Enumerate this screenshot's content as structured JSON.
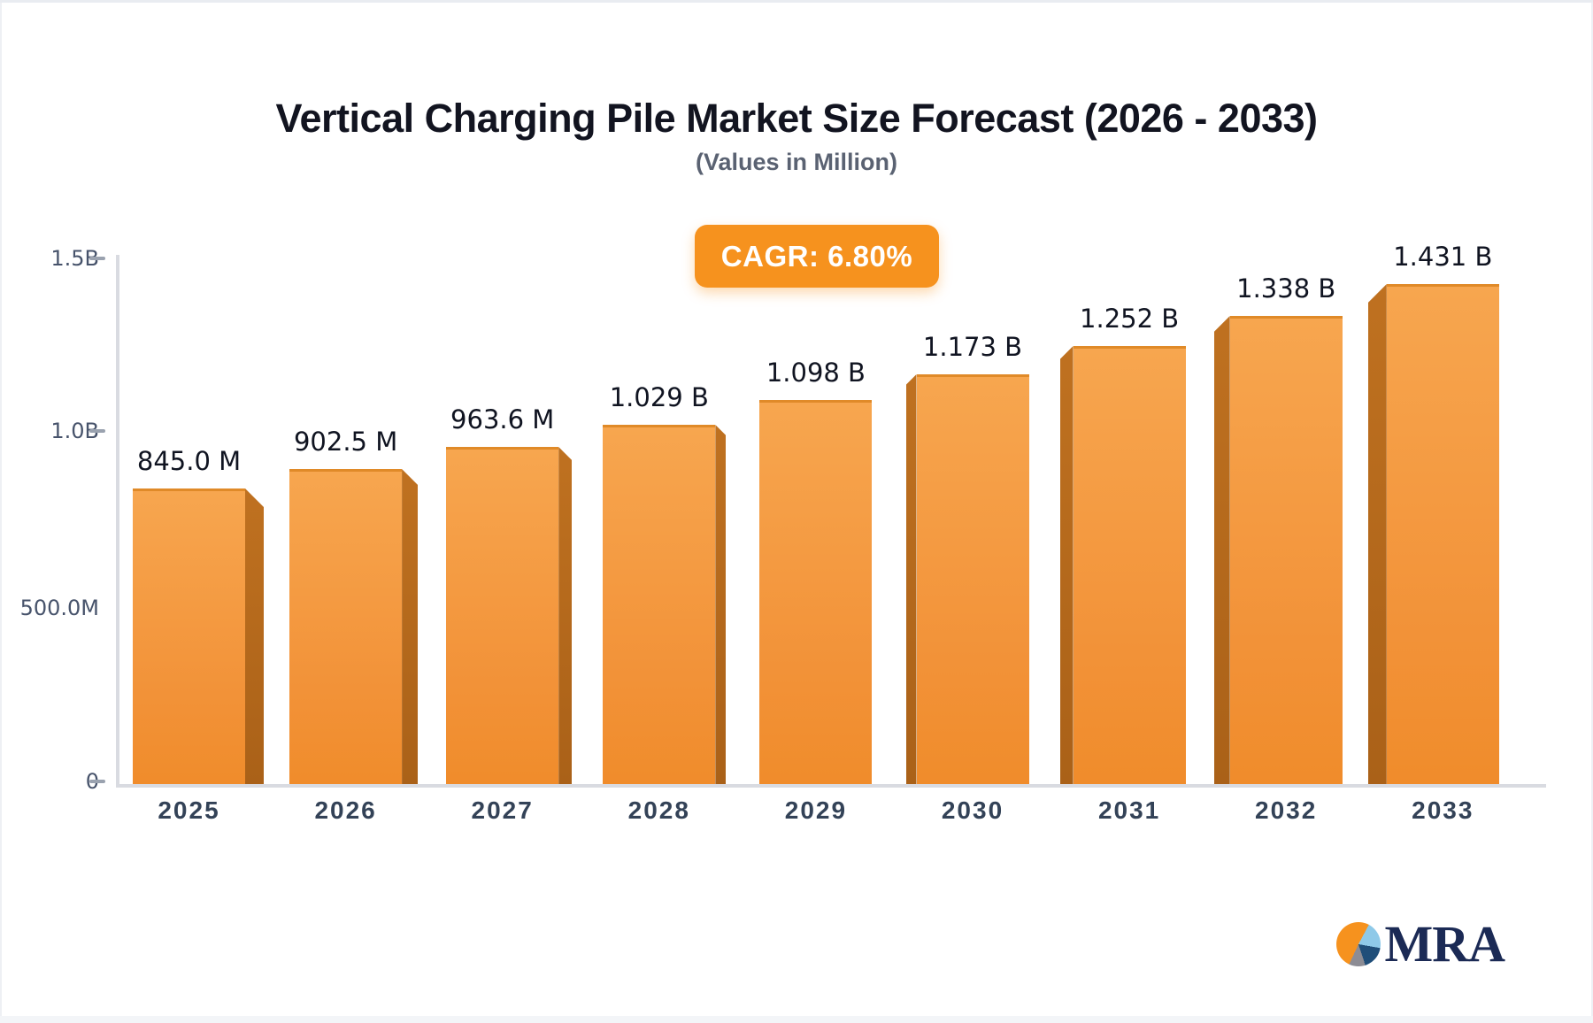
{
  "header": {
    "title": "Vertical Charging Pile Market Size Forecast (2026 - 2033)",
    "subtitle": "(Values in Million)",
    "cagr_badge_label": "CAGR: 6.80%",
    "badge_color": "#f6921e"
  },
  "chart_data": {
    "type": "bar",
    "title": "Vertical Charging Pile Market Size Forecast (2026 - 2033)",
    "subtitle": "(Values in Million)",
    "cagr_percent": "6.80%",
    "categories": [
      "2025",
      "2026",
      "2027",
      "2028",
      "2029",
      "2030",
      "2031",
      "2032",
      "2033"
    ],
    "values_millions": [
      845.0,
      902.5,
      963.6,
      1029,
      1098,
      1173,
      1252,
      1338,
      1431
    ],
    "value_labels": [
      "845.0 M",
      "902.5 M",
      "963.6 M",
      "1.029 B",
      "1.098 B",
      "1.173 B",
      "1.252 B",
      "1.338 B",
      "1.431 B"
    ],
    "ylim_millions": [
      0,
      1500
    ],
    "yticks": [
      "1.5B",
      "1.0B",
      "500.0M",
      "0"
    ],
    "ytick_values_millions": [
      1500,
      1000,
      500,
      0
    ],
    "grid": false,
    "legend": false,
    "bar_color_top": "#f7a64f",
    "bar_color_bottom": "#f08c2b",
    "bar_side_color": "#b2691c",
    "axis_color": "#d9dbe1",
    "label_color": "#101421"
  },
  "footer": {
    "logo_text": "MRA",
    "logo_navy": "#1b2a55",
    "logo_orange": "#f6921e",
    "logo_lightblue": "#8ec9e8",
    "logo_gray": "#8c8c94"
  }
}
